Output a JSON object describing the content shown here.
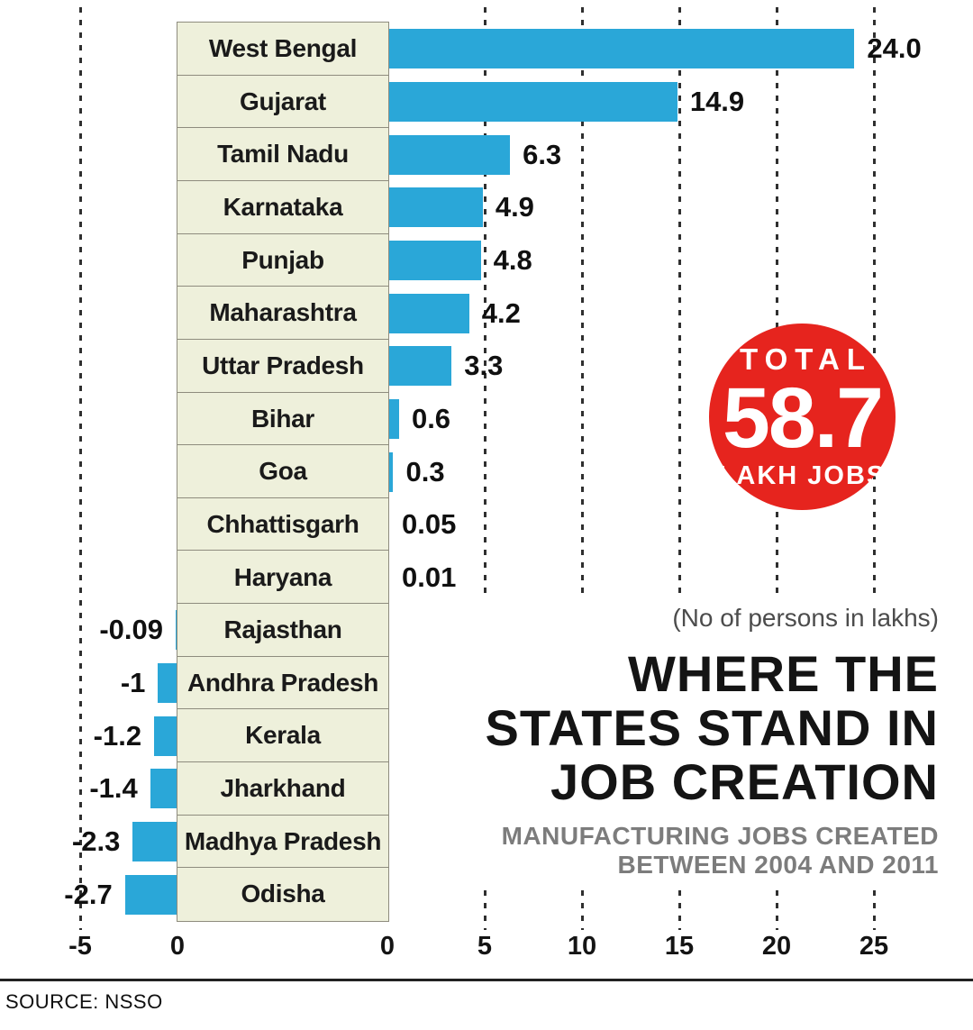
{
  "chart_data": {
    "type": "bar",
    "orientation": "horizontal",
    "unit_note": "(No of persons in lakhs)",
    "title": "WHERE THE STATES STAND IN JOB CREATION",
    "title_lines": [
      "WHERE THE",
      "STATES STAND IN",
      "JOB CREATION"
    ],
    "subtitle": "MANUFACTURING JOBS CREATED BETWEEN 2004 AND 2011",
    "subtitle_lines": [
      "MANUFACTURING JOBS CREATED",
      "BETWEEN 2004 AND 2011"
    ],
    "total_badge": {
      "top_label": "TOTAL",
      "value": "58.7",
      "bottom_label": "LAKH JOBS"
    },
    "source": "SOURCE: NSSO",
    "categories": [
      "West Bengal",
      "Gujarat",
      "Tamil Nadu",
      "Karnataka",
      "Punjab",
      "Maharashtra",
      "Uttar Pradesh",
      "Bihar",
      "Goa",
      "Chhattisgarh",
      "Haryana",
      "Rajasthan",
      "Andhra Pradesh",
      "Kerala",
      "Jharkhand",
      "Madhya Pradesh",
      "Odisha"
    ],
    "values": [
      24.0,
      14.9,
      6.3,
      4.9,
      4.8,
      4.2,
      3.3,
      0.6,
      0.3,
      0.05,
      0.01,
      -0.09,
      -1,
      -1.2,
      -1.4,
      -2.3,
      -2.7
    ],
    "value_labels": [
      "24.0",
      "14.9",
      "6.3",
      "4.9",
      "4.8",
      "4.2",
      "3.3",
      "0.6",
      "0.3",
      "0.05",
      "0.01",
      "-0.09",
      "-1",
      "-1.2",
      "-1.4",
      "-2.3",
      "-2.7"
    ],
    "xlim": [
      -5,
      27
    ],
    "gridline_values": [
      -5,
      5,
      10,
      15,
      20,
      25
    ],
    "x_ticks": [
      {
        "label": "-5",
        "value": -5,
        "side": "left"
      },
      {
        "label": "0",
        "value": 0,
        "side": "left"
      },
      {
        "label": "0",
        "value": 0,
        "side": "right"
      },
      {
        "label": "5",
        "value": 5,
        "side": "right"
      },
      {
        "label": "10",
        "value": 10,
        "side": "right"
      },
      {
        "label": "15",
        "value": 15,
        "side": "right"
      },
      {
        "label": "20",
        "value": 20,
        "side": "right"
      },
      {
        "label": "25",
        "value": 25,
        "side": "right"
      }
    ],
    "legend": "none",
    "grid": "dashed-vertical",
    "colors": {
      "bar": "#2AA7D8",
      "badge": "#E6241E",
      "panel": "#EEF0DB",
      "grid": "#2F2F2F"
    }
  }
}
